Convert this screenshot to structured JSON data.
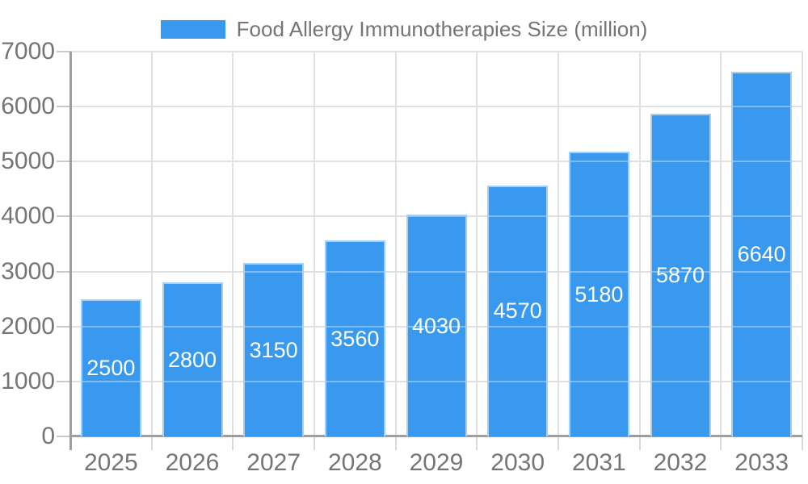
{
  "chart_data": {
    "type": "bar",
    "title": "Food Allergy Immunotherapies Size (million)",
    "categories": [
      "2025",
      "2026",
      "2027",
      "2028",
      "2029",
      "2030",
      "2031",
      "2032",
      "2033"
    ],
    "series": [
      {
        "name": "Food Allergy Immunotherapies Size (million)",
        "values": [
          2500,
          2800,
          3150,
          3560,
          4030,
          4570,
          5180,
          5870,
          6640
        ]
      }
    ],
    "xlabel": "",
    "ylabel": "",
    "ylim": [
      0,
      7000
    ],
    "y_ticks": [
      0,
      1000,
      2000,
      3000,
      4000,
      5000,
      6000,
      7000
    ],
    "grid": true,
    "legend_position": "top",
    "bar_labels_inside": true,
    "colors": {
      "bar": "#3899ee",
      "bar_border": "#a6cff2",
      "bar_label": "#ffffff",
      "gridline": "#e0e0e0",
      "axis": "#9e9e9e",
      "y_tick": "#c9c9c9",
      "x_tick": "#d9d9d9",
      "label_text": "#757575"
    }
  }
}
